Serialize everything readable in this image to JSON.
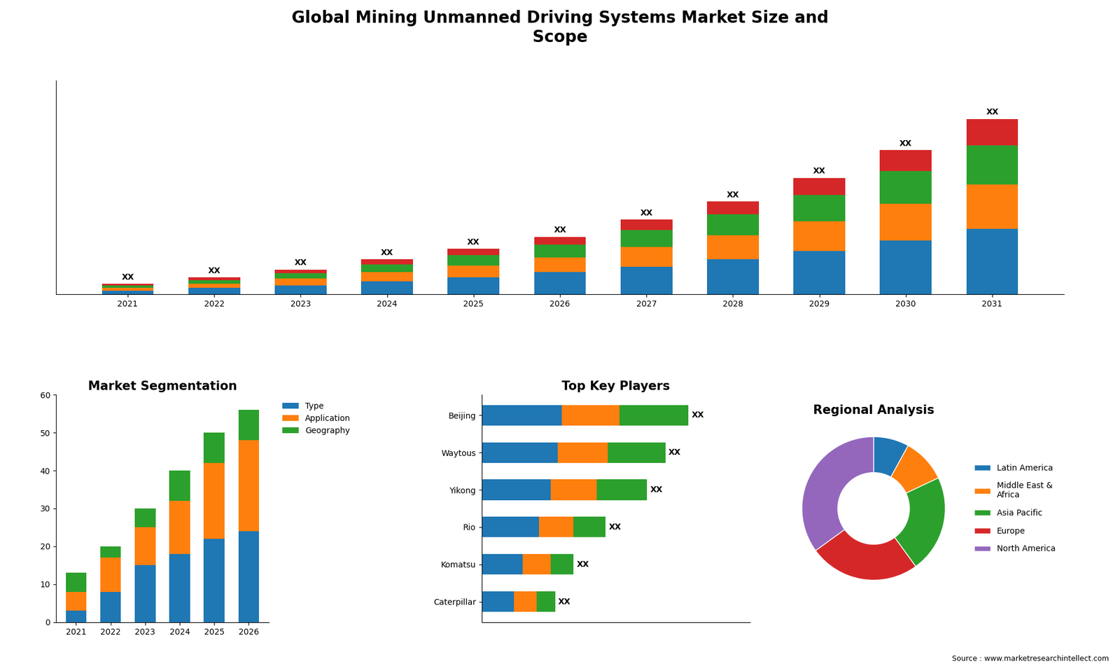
{
  "title": "Global Mining Unmanned Driving Systems Market Size and\nScope",
  "note": "Source : www.marketresearchintellect.com",
  "chart_data": [
    {
      "type": "bar",
      "stacked": true,
      "tick_labels": "x",
      "categories": [
        "2021",
        "2022",
        "2023",
        "2024",
        "2025",
        "2026",
        "2027",
        "2028",
        "2029",
        "2030",
        "2031"
      ],
      "ylim": [
        0,
        163.48
      ],
      "series": [
        {
          "values": [
            3,
            5,
            7,
            10,
            13,
            17,
            21,
            27,
            33,
            41,
            50
          ]
        },
        {
          "values": [
            2,
            3,
            5,
            7,
            9,
            11,
            15,
            18,
            23,
            28,
            34
          ]
        },
        {
          "values": [
            2,
            3,
            4,
            6,
            8,
            10,
            13,
            16,
            20,
            25,
            30
          ]
        },
        {
          "values": [
            1,
            2,
            3,
            4,
            5,
            6,
            8,
            10,
            13,
            16,
            20
          ],
          "value_labels": [
            "XX",
            "XX",
            "XX",
            "XX",
            "XX",
            "XX",
            "XX",
            "XX",
            "XX",
            "XX",
            "XX"
          ]
        }
      ]
    },
    {
      "type": "bar",
      "stacked": true,
      "title": "Market Segmentation",
      "categories": [
        "2021",
        "2022",
        "2023",
        "2024",
        "2025",
        "2026"
      ],
      "ylim": [
        0,
        60
      ],
      "yticks": [
        0,
        10,
        20,
        30,
        40,
        50,
        60
      ],
      "legend": "upper left",
      "series": [
        {
          "name": "Type",
          "values": [
            3,
            8,
            15,
            18,
            22,
            24
          ]
        },
        {
          "name": "Application",
          "values": [
            5,
            9,
            10,
            14,
            20,
            24
          ]
        },
        {
          "name": "Geography",
          "values": [
            5,
            3,
            5,
            8,
            8,
            8
          ]
        }
      ]
    },
    {
      "type": "bar",
      "stacked": true,
      "orientation": "horizontal",
      "title": "Top Key Players",
      "tick_labels": "y",
      "categories": [
        "Beijing",
        "Waytous",
        "Yikong",
        "Rio",
        "Komatsu",
        "Caterpillar"
      ],
      "xlim": [
        0,
        117
      ],
      "series": [
        {
          "values": [
            35,
            33,
            30,
            25,
            18,
            14
          ]
        },
        {
          "values": [
            25,
            22,
            20,
            15,
            12,
            10
          ]
        },
        {
          "values": [
            30,
            25,
            22,
            14,
            10,
            8
          ],
          "value_labels": [
            "XX",
            "XX",
            "XX",
            "XX",
            "XX",
            "XX"
          ]
        }
      ]
    },
    {
      "type": "pie",
      "title": "Regional Analysis",
      "legend": "center left",
      "categories": [
        "Latin America",
        "Middle East &\nAfrica",
        "Asia Pacific",
        "Europe",
        "North America"
      ],
      "values": [
        8,
        10,
        22,
        25,
        35
      ]
    }
  ]
}
